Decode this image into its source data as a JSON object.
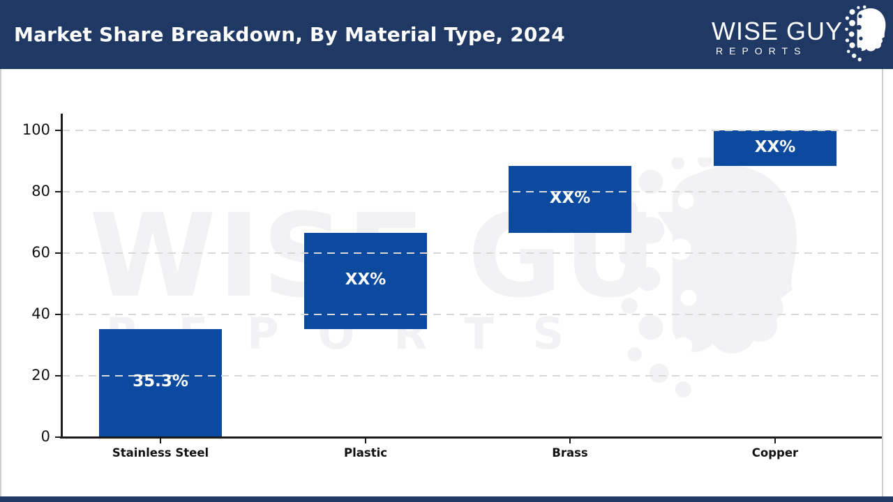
{
  "header": {
    "title": "Market Share Breakdown, By Material Type, 2024"
  },
  "logo": {
    "line1": "WISE GUY",
    "line2": "REPORTS"
  },
  "watermark": {
    "line1": "WISE GUY",
    "line2": "REPORTS"
  },
  "colors": {
    "header_bg": "#203864",
    "footer_bg": "#203864",
    "bar_blue": "#0b4a9f",
    "gridline": "#d9d9d9",
    "watermark_gray": "#f2f2f4"
  },
  "chart_data": {
    "type": "bar",
    "subtype": "waterfall",
    "title": "Market Share Breakdown, By Material Type, 2024",
    "categories": [
      "Stainless Steel",
      "Plastic",
      "Brass",
      "Copper"
    ],
    "segments": [
      {
        "category": "Stainless Steel",
        "start": 0,
        "end": 35.3,
        "label": "35.3%"
      },
      {
        "category": "Plastic",
        "start": 35.3,
        "end": 66.7,
        "label": "XX%"
      },
      {
        "category": "Brass",
        "start": 66.7,
        "end": 88.3,
        "label": "XX%"
      },
      {
        "category": "Copper",
        "start": 88.3,
        "end": 100,
        "label": "XX%"
      }
    ],
    "yticks": [
      0,
      20,
      40,
      60,
      80,
      100
    ],
    "ylim": [
      0,
      105
    ],
    "xlabel": "",
    "ylabel": "",
    "grid": "horizontal dashed lines drawn above bars",
    "legend": "none",
    "bar_color": "#0b4a9f",
    "value_label_color": "#ffffff"
  }
}
